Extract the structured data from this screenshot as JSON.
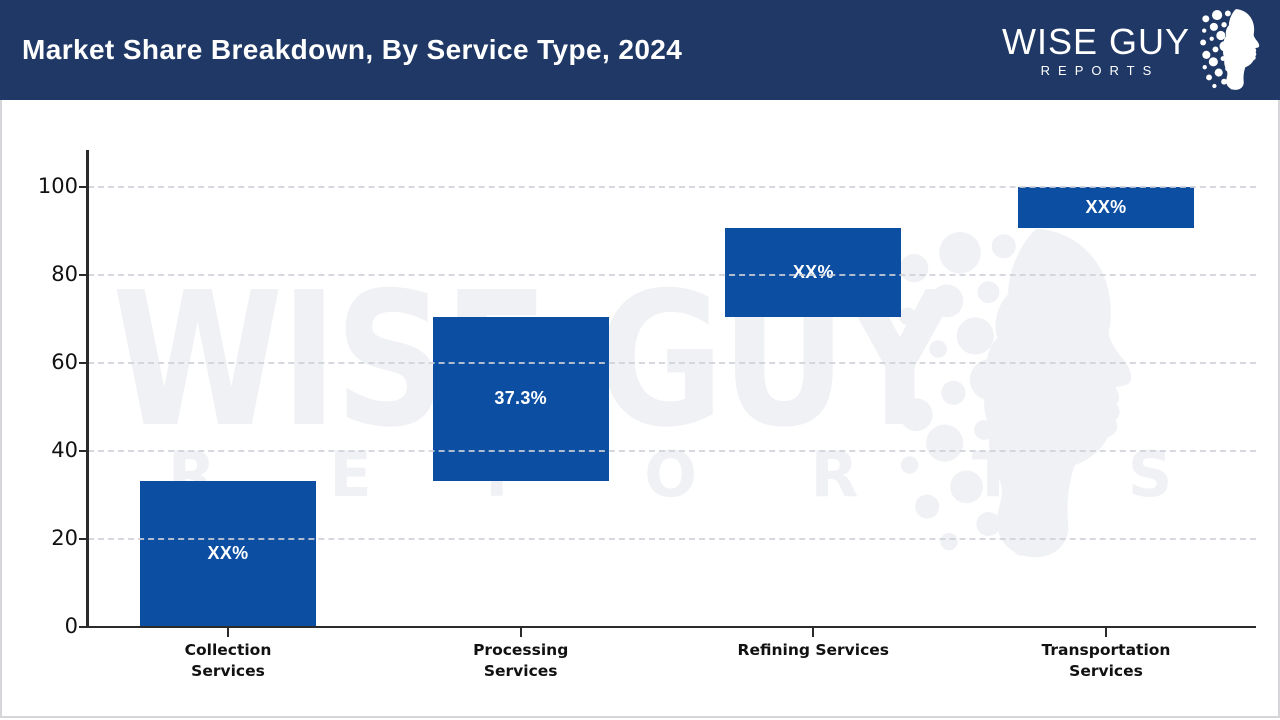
{
  "header": {
    "title": "Market Share Breakdown, By Service Type, 2024",
    "brand_name": "WISE GUY",
    "brand_sub": "REPORTS",
    "bg_color": "#1f3865",
    "text_color": "#ffffff"
  },
  "watermark": {
    "line1": "WISE GUY",
    "line2": "R E P O R T S",
    "color": "#f0f1f4"
  },
  "chart_data": {
    "type": "bar",
    "subtype": "floating-waterfall",
    "title": "Market Share Breakdown, By Service Type, 2024",
    "categories": [
      "Collection Services",
      "Processing Services",
      "Refining Services",
      "Transportation Services"
    ],
    "category_lines": [
      [
        "Collection",
        "Services"
      ],
      [
        "Processing",
        "Services"
      ],
      [
        "Refining Services"
      ],
      [
        "Transportation",
        "Services"
      ]
    ],
    "segments": [
      {
        "category": "Collection Services",
        "start": 0,
        "end": 33.2,
        "height_pct": 33.2,
        "label": "XX%"
      },
      {
        "category": "Processing Services",
        "start": 33.2,
        "end": 70.5,
        "height_pct": 37.3,
        "label": "37.3%"
      },
      {
        "category": "Refining Services",
        "start": 70.5,
        "end": 90.6,
        "height_pct": 20.1,
        "label": "XX%"
      },
      {
        "category": "Transportation Services",
        "start": 90.6,
        "end": 100,
        "height_pct": 9.4,
        "label": "XX%"
      }
    ],
    "xlabel": "",
    "ylabel": "",
    "ylim": [
      0,
      108
    ],
    "yticks": [
      0,
      20,
      40,
      60,
      80,
      100
    ],
    "grid": "horizontal dashed, drawn over bars",
    "legend": "none",
    "bar_color": "#0b4ea2",
    "bar_label_color": "#ffffff",
    "axis_color": "#2b2b2b",
    "gridline_color": "#ced1d8"
  }
}
